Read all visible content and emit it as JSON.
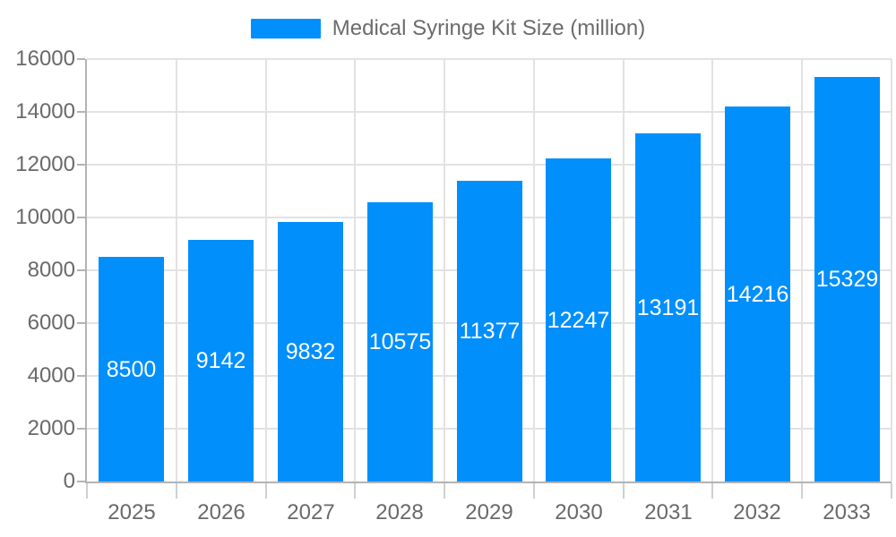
{
  "chart_data": {
    "type": "bar",
    "title": "Medical Syringe Kit Size (million)",
    "categories": [
      "2025",
      "2026",
      "2027",
      "2028",
      "2029",
      "2030",
      "2031",
      "2032",
      "2033"
    ],
    "values": [
      8500,
      9142,
      9832,
      10575,
      11377,
      12247,
      13191,
      14216,
      15329
    ],
    "xlabel": "",
    "ylabel": "",
    "ylim": [
      0,
      16000
    ],
    "ytick_step": 2000,
    "yticks": [
      0,
      2000,
      4000,
      6000,
      8000,
      10000,
      12000,
      14000,
      16000
    ],
    "grid": true,
    "legend_position": "top",
    "colors": {
      "bar": "#008FFB",
      "value_label": "#FFFFFF",
      "axis_label": "#696969",
      "legend_text": "#6B6B6B",
      "gridline": "#E2E2E2",
      "axis_line": "#B3B3B3",
      "tick_mark": "#CFCFCF"
    }
  }
}
